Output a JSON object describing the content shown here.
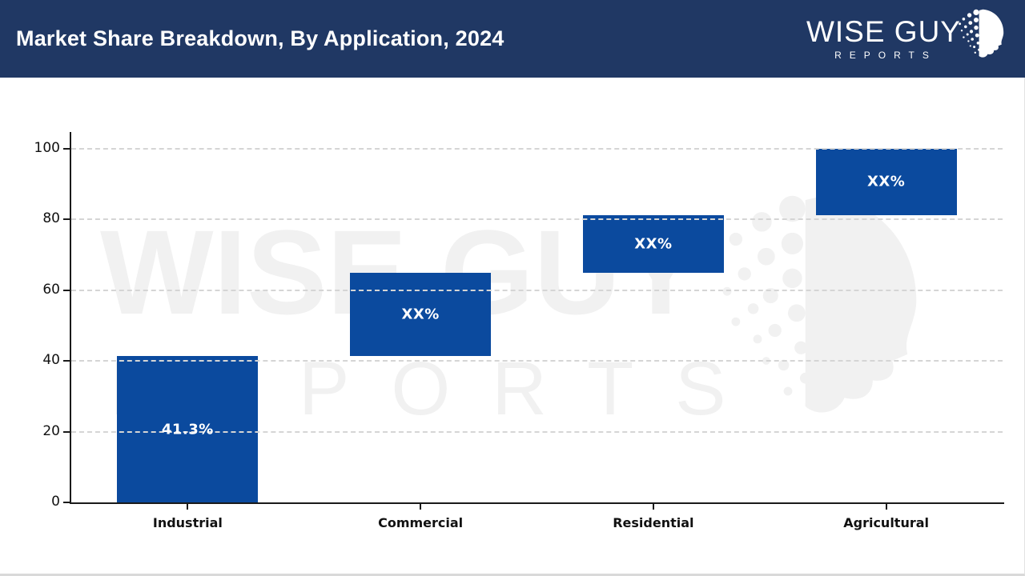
{
  "header": {
    "title": "Market Share Breakdown, By Application, 2024",
    "bg_color": "#203864",
    "logo": {
      "line1": "WISE GUY",
      "line2": "REPORTS"
    }
  },
  "watermark": {
    "line1": "WISE GUY",
    "line2": "REPORTS"
  },
  "chart_data": {
    "type": "bar",
    "subtype": "waterfall",
    "title": "Market Share Breakdown, By Application, 2024",
    "categories": [
      "Industrial",
      "Commercial",
      "Residential",
      "Agricultural"
    ],
    "segments": [
      {
        "category": "Industrial",
        "start": 0,
        "end": 41.3,
        "label": "41.3%"
      },
      {
        "category": "Commercial",
        "start": 41.3,
        "end": 65.0,
        "label": "XX%"
      },
      {
        "category": "Residential",
        "start": 65.0,
        "end": 81.3,
        "label": "XX%"
      },
      {
        "category": "Agricultural",
        "start": 81.3,
        "end": 100.0,
        "label": "XX%"
      }
    ],
    "xlabel": "",
    "ylabel": "",
    "ylim": [
      0,
      100
    ],
    "yticks": [
      0,
      20,
      40,
      60,
      80,
      100
    ],
    "grid": true,
    "grid_style": "dashed",
    "legend": false,
    "bar_color": "#0b4a9e",
    "bar_label_color": "#ffffff",
    "axis_color": "#1a1a1a",
    "gridline_color": "#d5d5d5",
    "watermark_color": "#f1f1f1"
  }
}
